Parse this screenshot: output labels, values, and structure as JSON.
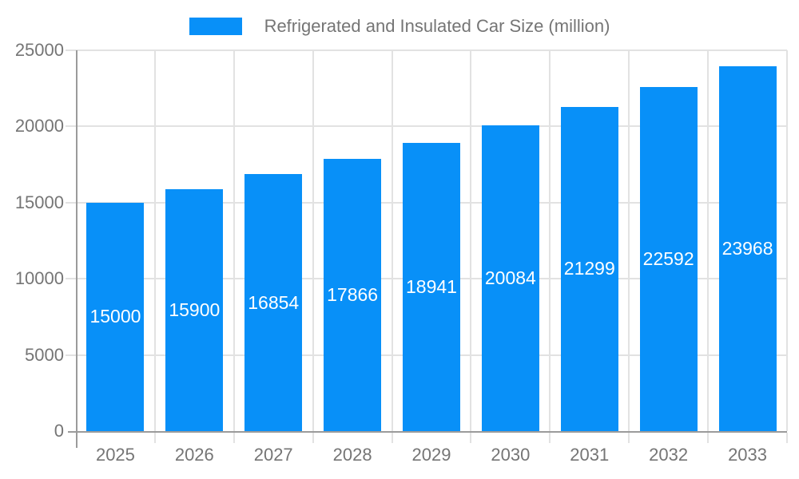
{
  "chart_data": {
    "type": "bar",
    "title": "Refrigerated and Insulated Car Size (million)",
    "categories": [
      "2025",
      "2026",
      "2027",
      "2028",
      "2029",
      "2030",
      "2031",
      "2032",
      "2033"
    ],
    "series": [
      {
        "name": "Refrigerated and Insulated Car Size (million)",
        "values": [
          15000,
          15900,
          16854,
          17866,
          18941,
          20084,
          21299,
          22592,
          23968
        ]
      }
    ],
    "xlabel": "",
    "ylabel": "",
    "ylim": [
      0,
      25000
    ],
    "yticks": [
      0,
      5000,
      10000,
      15000,
      20000,
      25000
    ],
    "grid": true,
    "legend_position": "top",
    "bar_labels": "inside-center"
  },
  "colors": {
    "bar": "#0890F8",
    "axis": "#9B9B9B",
    "grid": "#E2E2E2",
    "tick_text": "#757575",
    "bar_label_text": "#FFFFFF",
    "background": "#FFFFFF"
  }
}
